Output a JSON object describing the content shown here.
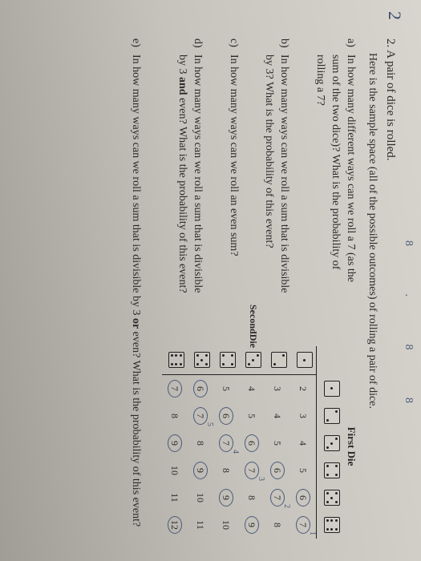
{
  "handwritten_qnum": "2",
  "top_scribbles": "8 . 8 8",
  "question_number": "2.",
  "main_question": "A pair of dice is rolled.",
  "intro": "Here is the sample space (all of the possible outcomes) of rolling a pair of dice.",
  "subs": {
    "a": {
      "label": "a)",
      "text": "In how many different ways can we roll a 7 (as the sum of the two dice)? What is the probability of rolling a 7?"
    },
    "b": {
      "label": "b)",
      "text": "In how many ways can we roll a sum that is divisible by 3? What is the probability of this event?"
    },
    "c": {
      "label": "c)",
      "text": "In how many ways can we roll an even sum?"
    },
    "d": {
      "label": "d)",
      "text": "In how many ways can we roll a sum that is divisible by 3 ",
      "bold": "and",
      "text2": " even? What is the probability of this event?"
    },
    "e": {
      "label": "e)",
      "text": "In how many ways can we roll a sum that is divisible by 3 ",
      "bold": "or",
      "text2": " even? What is the probability of this event?"
    }
  },
  "table": {
    "first_die_label": "First Die",
    "second_die_label": "Second\nDie",
    "sums": [
      [
        2,
        3,
        4,
        5,
        6,
        7
      ],
      [
        3,
        4,
        5,
        6,
        7,
        8
      ],
      [
        4,
        5,
        6,
        7,
        8,
        9
      ],
      [
        5,
        6,
        7,
        8,
        9,
        10
      ],
      [
        6,
        7,
        8,
        9,
        10,
        11
      ],
      [
        7,
        8,
        9,
        10,
        11,
        12
      ]
    ],
    "circled": [
      [
        0,
        0,
        0,
        0,
        1,
        1
      ],
      [
        0,
        0,
        0,
        1,
        1,
        0
      ],
      [
        0,
        0,
        1,
        1,
        0,
        1
      ],
      [
        0,
        1,
        1,
        0,
        1,
        0
      ],
      [
        1,
        1,
        0,
        1,
        0,
        0
      ],
      [
        1,
        0,
        1,
        0,
        0,
        1
      ]
    ],
    "hand_superscript": {
      "0,5": "1",
      "1,4": "2",
      "2,3": "3",
      "3,2": "4",
      "4,1": "5"
    },
    "circle_color": "#4a5a7a"
  },
  "colors": {
    "text": "#2a2a2a",
    "handwriting": "#4a5a7a",
    "paper_light": "#d8d5ce",
    "paper_dark": "#a09d96"
  }
}
